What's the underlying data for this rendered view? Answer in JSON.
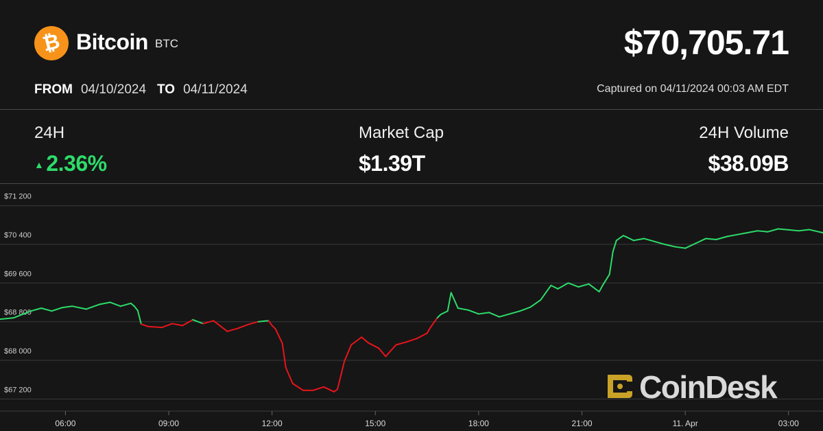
{
  "header": {
    "logo_symbol": "₿",
    "coin_name": "Bitcoin",
    "ticker": "BTC",
    "price": "$70,705.71",
    "from_label": "FROM",
    "from_date": "04/10/2024",
    "to_label": "TO",
    "to_date": "04/11/2024",
    "captured": "Captured on 04/11/2024 00:03 AM EDT"
  },
  "stats": {
    "change_label": "24H",
    "change_value": "2.36%",
    "change_arrow": "▲",
    "market_cap_label": "Market Cap",
    "market_cap_value": "$1.39T",
    "volume_label": "24H Volume",
    "volume_value": "$38.09B"
  },
  "watermark": {
    "text": "CoinDesk",
    "icon": "coindesk-logo-icon"
  },
  "colors": {
    "background": "#161616",
    "up": "#2ddc6a",
    "down": "#e8141c",
    "bitcoin_orange": "#f7931a",
    "watermark_gold": "#c9a227",
    "grid": "#3a3a3a"
  },
  "chart_data": {
    "type": "line",
    "y_ticks": [
      "$71 200",
      "$70 400",
      "$69 600",
      "$68 800",
      "$68 000",
      "$67 200"
    ],
    "y_tick_values": [
      71200,
      70400,
      69600,
      68800,
      68000,
      67200
    ],
    "x_ticks": [
      "06:00",
      "09:00",
      "12:00",
      "15:00",
      "18:00",
      "21:00",
      "11. Apr",
      "03:00"
    ],
    "x_tick_hours": [
      6,
      9,
      12,
      15,
      18,
      21,
      24,
      27
    ],
    "xlim_hours": [
      4.1,
      28.0
    ],
    "ylim": [
      66950,
      71650
    ],
    "grid": true,
    "baseline": 68800,
    "color_rule": "green above baseline, red below",
    "x": [
      4.1,
      4.5,
      5.0,
      5.3,
      5.6,
      5.9,
      6.2,
      6.6,
      7.0,
      7.3,
      7.6,
      7.9,
      8.0,
      8.1,
      8.2,
      8.4,
      8.8,
      9.1,
      9.4,
      9.7,
      10.0,
      10.3,
      10.7,
      11.0,
      11.3,
      11.6,
      11.9,
      12.0,
      12.1,
      12.3,
      12.4,
      12.6,
      12.9,
      13.2,
      13.5,
      13.8,
      13.9,
      14.1,
      14.3,
      14.6,
      14.8,
      15.1,
      15.3,
      15.6,
      15.9,
      16.2,
      16.5,
      16.6,
      16.8,
      16.9,
      17.1,
      17.2,
      17.4,
      17.7,
      18.0,
      18.3,
      18.6,
      18.9,
      19.2,
      19.5,
      19.8,
      20.1,
      20.3,
      20.6,
      20.9,
      21.2,
      21.5,
      21.6,
      21.8,
      21.9,
      22.0,
      22.2,
      22.3,
      22.5,
      22.8,
      23.1,
      23.4,
      23.7,
      24.0,
      24.3,
      24.6,
      24.9,
      25.2,
      25.5,
      25.8,
      26.1,
      26.4,
      26.7,
      27.0,
      27.3,
      27.6,
      28.0
    ],
    "values": [
      68850,
      68880,
      69020,
      69080,
      69020,
      69090,
      69120,
      69060,
      69160,
      69200,
      69120,
      69180,
      69120,
      69030,
      68750,
      68700,
      68680,
      68760,
      68720,
      68840,
      68760,
      68820,
      68600,
      68660,
      68740,
      68800,
      68820,
      68720,
      68650,
      68350,
      67850,
      67520,
      67380,
      67380,
      67450,
      67350,
      67400,
      67980,
      68320,
      68480,
      68360,
      68250,
      68080,
      68320,
      68380,
      68450,
      68560,
      68680,
      68880,
      68950,
      69020,
      69400,
      69080,
      69040,
      68960,
      68990,
      68900,
      68960,
      69020,
      69100,
      69250,
      69550,
      69480,
      69600,
      69520,
      69580,
      69420,
      69550,
      69780,
      70250,
      70480,
      70580,
      70550,
      70480,
      70520,
      70460,
      70400,
      70350,
      70320,
      70420,
      70520,
      70500,
      70560,
      70600,
      70640,
      70680,
      70660,
      70720,
      70700,
      70680,
      70705,
      70640
    ]
  }
}
